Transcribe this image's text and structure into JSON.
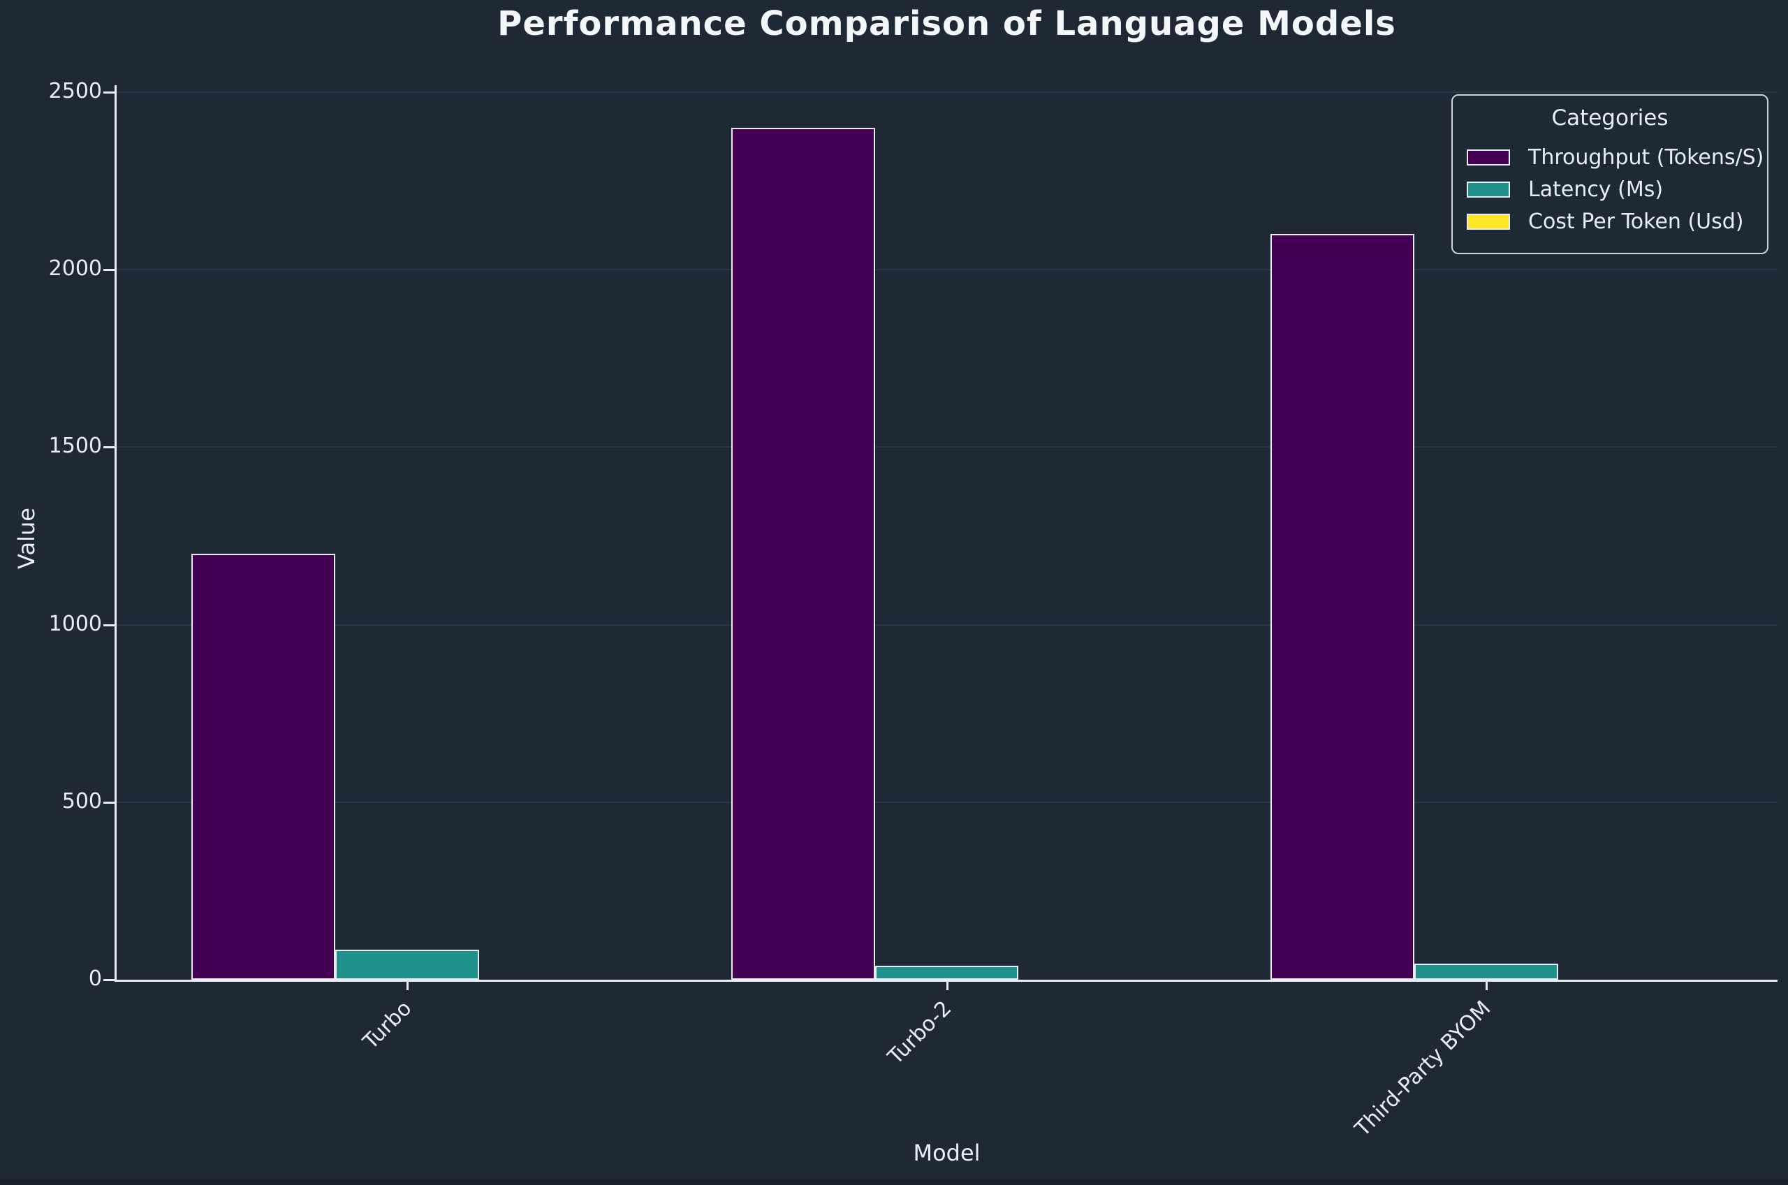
{
  "title": "Performance Comparison of Language Models",
  "legend": {
    "title": "Categories"
  },
  "colors": {
    "background": "#1f2936",
    "text": "#e9eef5",
    "axis": "#e9eef5",
    "gridline": "#293749",
    "bar_edge": "#e6ecf2",
    "legend_border": "#cdd6de"
  },
  "chart_data": {
    "type": "bar",
    "title": "Performance Comparison of Language Models",
    "xlabel": "Model",
    "ylabel": "Value",
    "categories": [
      "Turbo",
      "Turbo-2",
      "Third-Party BYOM"
    ],
    "series": [
      {
        "name": "Throughput (Tokens/S)",
        "color": "#440154",
        "values": [
          1200,
          2400,
          2100
        ]
      },
      {
        "name": "Latency (Ms)",
        "color": "#21918c",
        "values": [
          85,
          40,
          45
        ]
      },
      {
        "name": "Cost Per Token (Usd)",
        "color": "#fde725",
        "values": [
          0,
          0,
          0
        ]
      }
    ],
    "ylim": [
      0,
      2500
    ],
    "yticks": [
      0,
      500,
      1000,
      1500,
      2000,
      2500
    ],
    "grid": true,
    "legend_title": "Categories",
    "legend_position": "upper right",
    "x_tick_rotation": 45
  }
}
